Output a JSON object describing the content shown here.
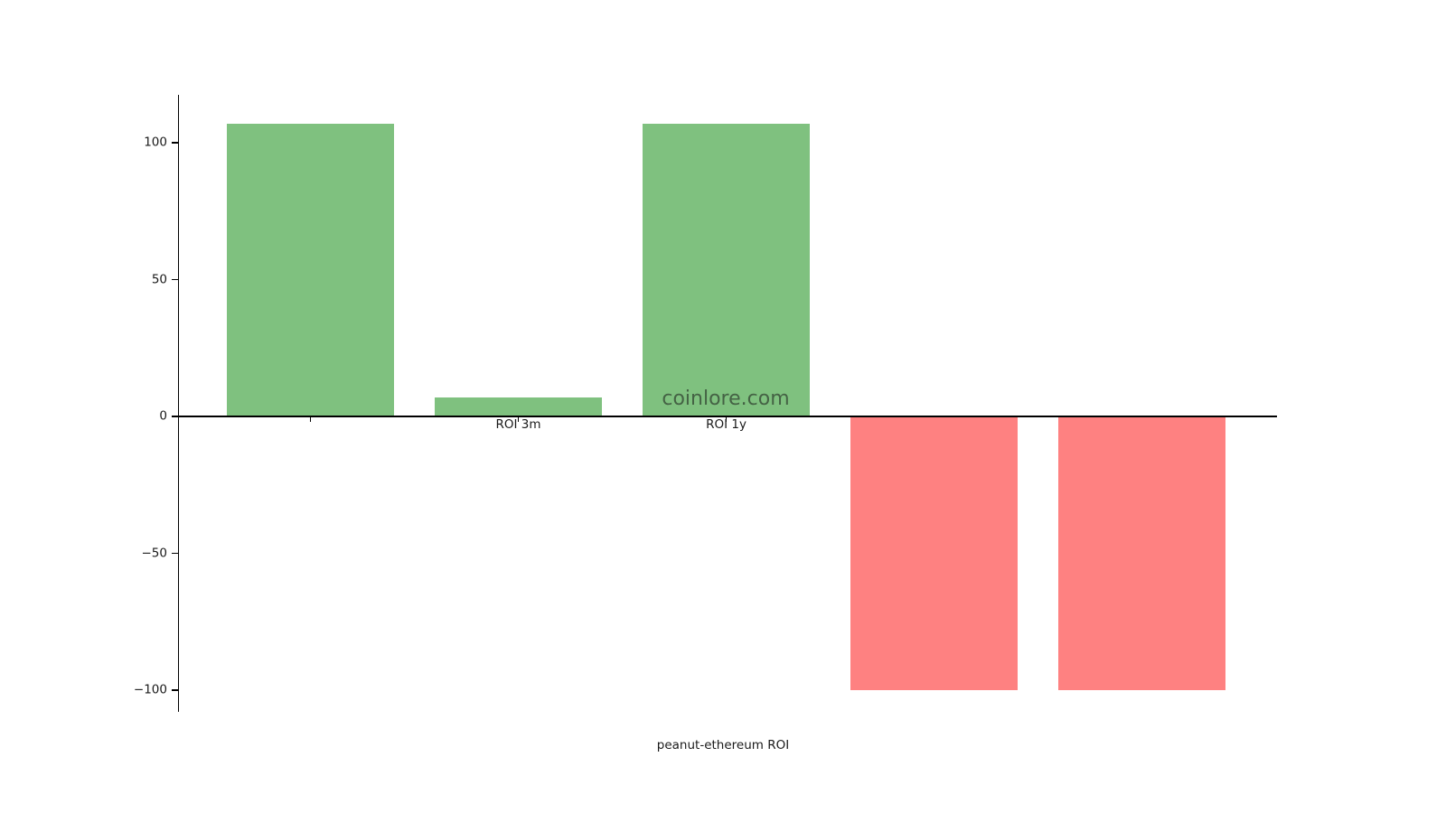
{
  "chart_data": {
    "type": "bar",
    "title": "peanut-ethereum ROI",
    "watermark_text": "coinlore.com",
    "categories": [
      "",
      "ROI 3m",
      "ROI 1y",
      "",
      ""
    ],
    "values": [
      107,
      7,
      107,
      -100,
      -100
    ],
    "positive_color": "#7fc17f",
    "negative_color": "#fe8181",
    "axis_color": "#000000",
    "text_color": "#1a1a1a",
    "yticks": [
      100,
      50,
      0,
      -50,
      -100
    ],
    "ylim": [
      -108,
      118
    ],
    "xlabel": "",
    "ylabel": "",
    "grid": false,
    "legend_position": "none",
    "background": "#ffffff"
  }
}
